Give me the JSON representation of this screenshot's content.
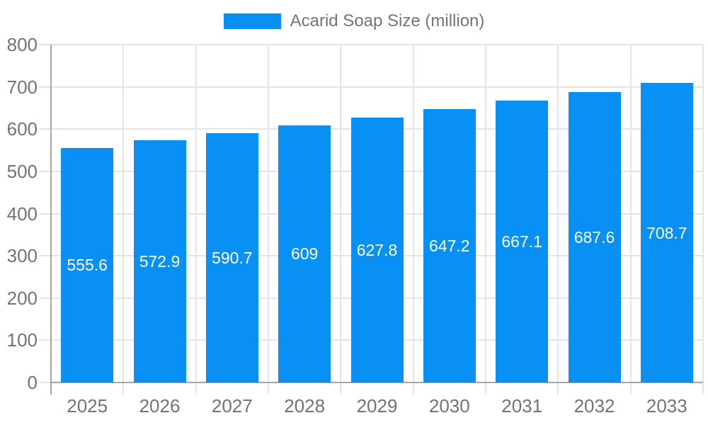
{
  "chart_data": {
    "type": "bar",
    "title": "",
    "legend": "Acarid Soap Size (million)",
    "legend_position": "top",
    "categories": [
      "2025",
      "2026",
      "2027",
      "2028",
      "2029",
      "2030",
      "2031",
      "2032",
      "2033"
    ],
    "values": [
      555.6,
      572.9,
      590.7,
      609,
      627.8,
      647.2,
      667.1,
      687.6,
      708.7
    ],
    "value_labels": [
      "555.6",
      "572.9",
      "590.7",
      "609",
      "627.8",
      "647.2",
      "667.1",
      "687.6",
      "708.7"
    ],
    "xlabel": "",
    "ylabel": "",
    "ylim": [
      0,
      800
    ],
    "yticks": [
      "0",
      "100",
      "200",
      "300",
      "400",
      "500",
      "600",
      "700",
      "800"
    ],
    "grid": true,
    "colors": {
      "bar": "#0990f4",
      "grid": "#e4e4e4",
      "axis": "#a5a5a5",
      "tick_text": "#737373",
      "legend_text": "#757575",
      "bar_label": "#ffffff",
      "background": "#ffffff"
    }
  }
}
